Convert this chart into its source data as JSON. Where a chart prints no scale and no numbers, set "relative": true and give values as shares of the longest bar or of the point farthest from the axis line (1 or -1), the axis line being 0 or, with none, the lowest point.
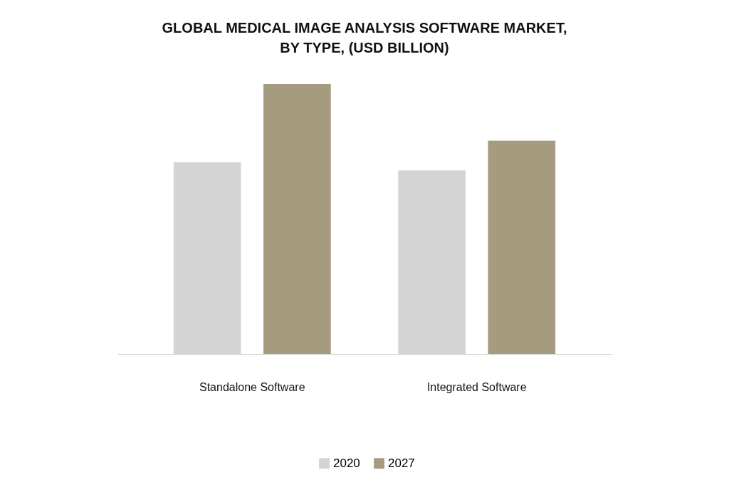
{
  "chart_data": {
    "type": "bar",
    "title": "GLOBAL MEDICAL IMAGE ANALYSIS SOFTWARE MARKET, BY TYPE, (USD BILLION)",
    "categories": [
      "Standalone Software",
      "Integrated Software"
    ],
    "series": [
      {
        "name": "2020",
        "color": "#d4d4d4",
        "values": [
          0.71,
          0.68
        ]
      },
      {
        "name": "2027",
        "color": "#a59b7f",
        "values": [
          1,
          0.79
        ]
      }
    ],
    "relative": true,
    "legend": "bottom"
  }
}
